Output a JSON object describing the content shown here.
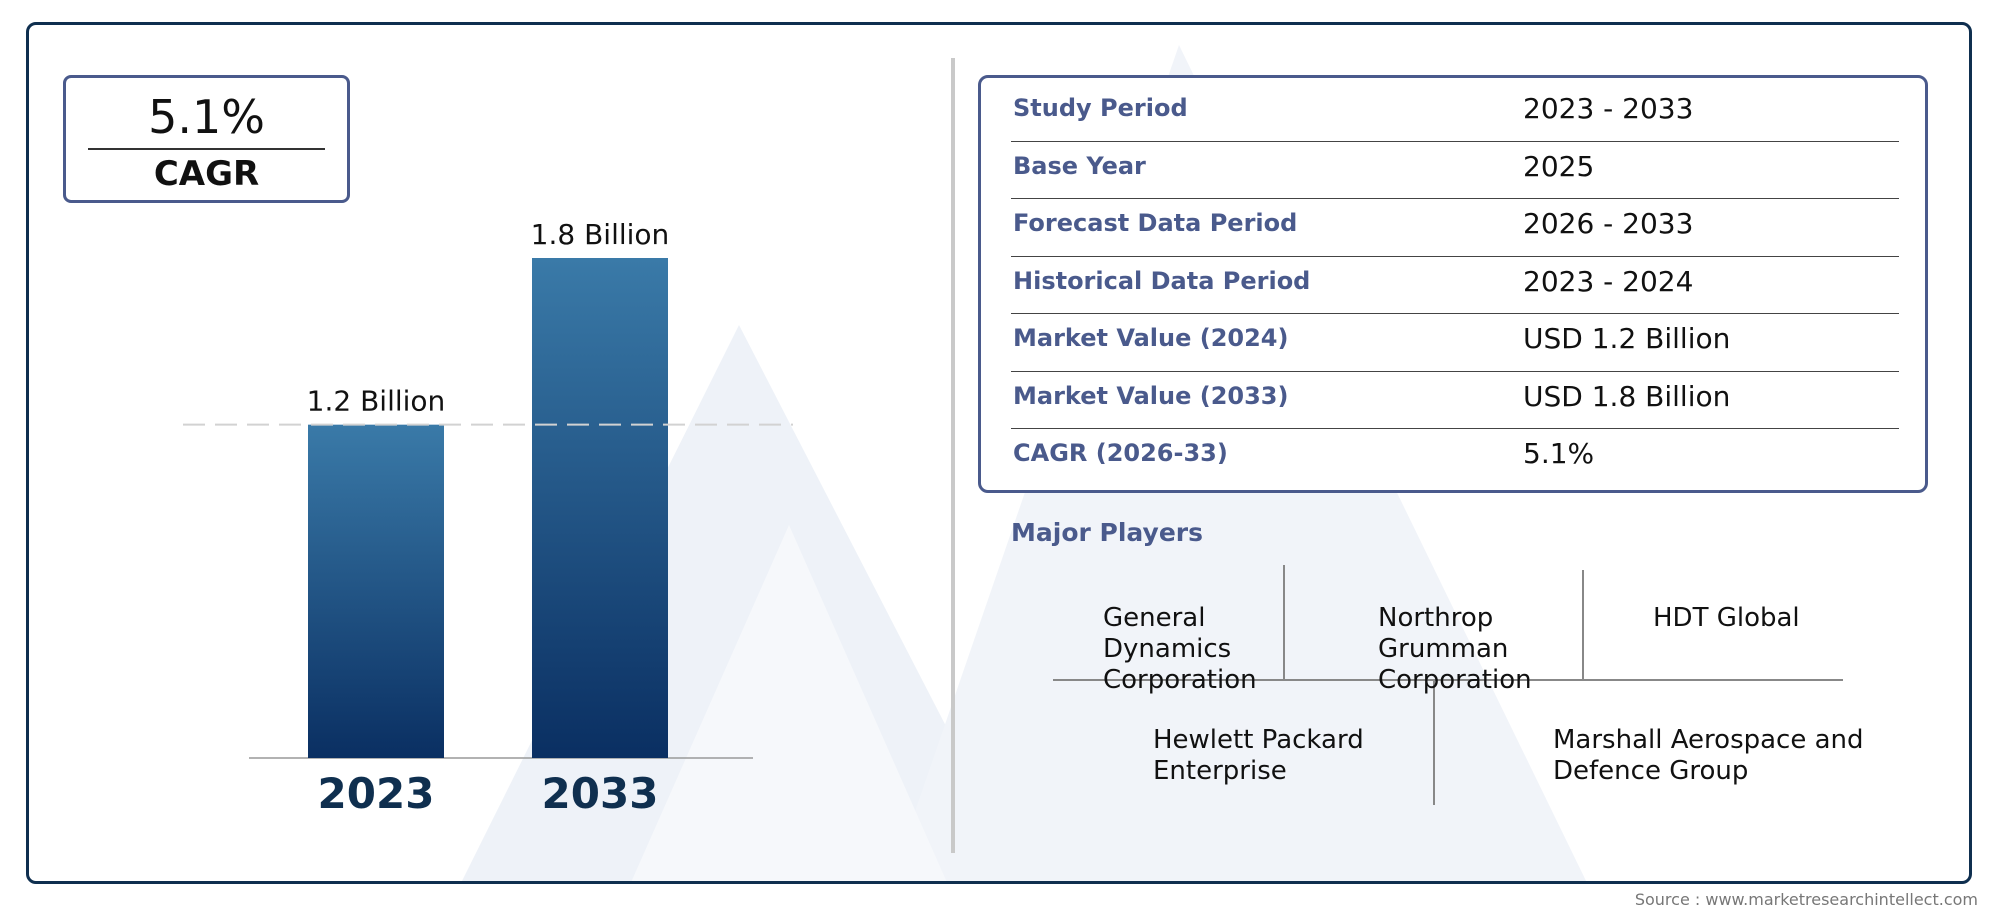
{
  "cagr_box": {
    "value": "5.1%",
    "label": "CAGR"
  },
  "chart_data": {
    "type": "bar",
    "categories": [
      "2023",
      "2033"
    ],
    "values": [
      1.2,
      1.8
    ],
    "data_labels": [
      "1.2 Billion",
      "1.8 Billion"
    ],
    "ylim": [
      0,
      1.8
    ],
    "reference_line": {
      "value": 1.2,
      "style": "dashed"
    },
    "grid": false,
    "bar_color_top": "#3a7aa8",
    "bar_color_bottom": "#0a2f62",
    "category_label_color": "#0f2f4f"
  },
  "summary_table": [
    {
      "label": "Study Period",
      "value": "2023 - 2033"
    },
    {
      "label": "Base Year",
      "value": "2025"
    },
    {
      "label": "Forecast Data Period",
      "value": "2026 - 2033"
    },
    {
      "label": "Historical Data Period",
      "value": "2023 - 2024"
    },
    {
      "label": "Market Value (2024)",
      "value": "USD 1.2 Billion"
    },
    {
      "label": "Market Value (2033)",
      "value": "USD 1.8 Billion"
    },
    {
      "label": "CAGR (2026-33)",
      "value": "5.1%"
    }
  ],
  "major_players": {
    "title": "Major Players",
    "players": [
      "General\nDynamics\nCorporation",
      "Northrop\nGrumman\nCorporation",
      "HDT Global",
      "Hewlett Packard\nEnterprise",
      "Marshall Aerospace and\nDefence Group"
    ]
  },
  "source": "Source : www.marketresearchintellect.com",
  "colors": {
    "accent": "#4a5a8c",
    "frame": "#0f2f4f"
  }
}
